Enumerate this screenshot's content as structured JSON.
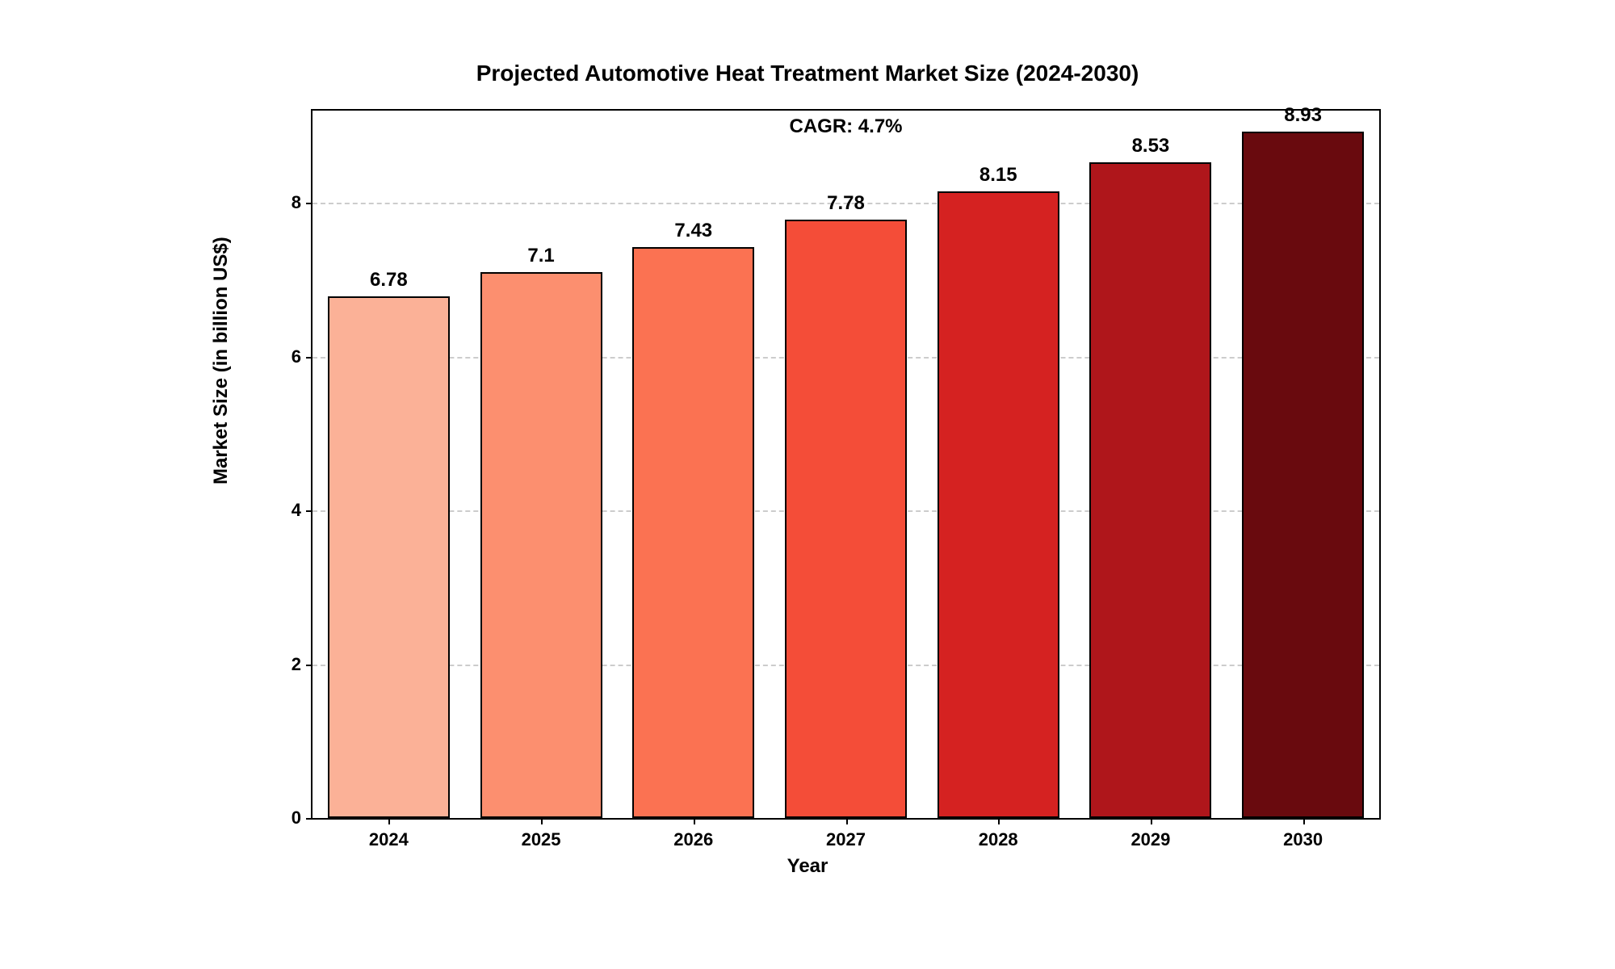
{
  "chart": {
    "type": "bar",
    "title": "Projected Automotive Heat Treatment Market Size (2024-2030)",
    "title_fontsize": 28,
    "subtitle": "CAGR: 4.7%",
    "subtitle_fontsize": 24,
    "xlabel": "Year",
    "ylabel": "Market Size (in billion US$)",
    "label_fontsize": 24,
    "tick_fontsize": 22,
    "value_label_fontsize": 24,
    "categories": [
      "2024",
      "2025",
      "2026",
      "2027",
      "2028",
      "2029",
      "2030"
    ],
    "values": [
      6.78,
      7.1,
      7.43,
      7.78,
      8.15,
      8.53,
      8.93
    ],
    "value_labels": [
      "6.78",
      "7.1",
      "7.43",
      "7.78",
      "8.15",
      "8.53",
      "8.93"
    ],
    "bar_colors": [
      "#fbb197",
      "#fc8f6f",
      "#fb7252",
      "#f44d38",
      "#d52221",
      "#af161b",
      "#690a0e"
    ],
    "bar_edge_color": "#000000",
    "bar_edge_width": 2,
    "bar_width": 0.8,
    "ylim": [
      0,
      9.2
    ],
    "yticks": [
      0,
      2,
      4,
      6,
      8
    ],
    "grid_color": "#cccccc",
    "grid_dash": "dashed",
    "background_color": "#ffffff",
    "axis_line_color": "#000000",
    "axis_line_width": 2
  }
}
